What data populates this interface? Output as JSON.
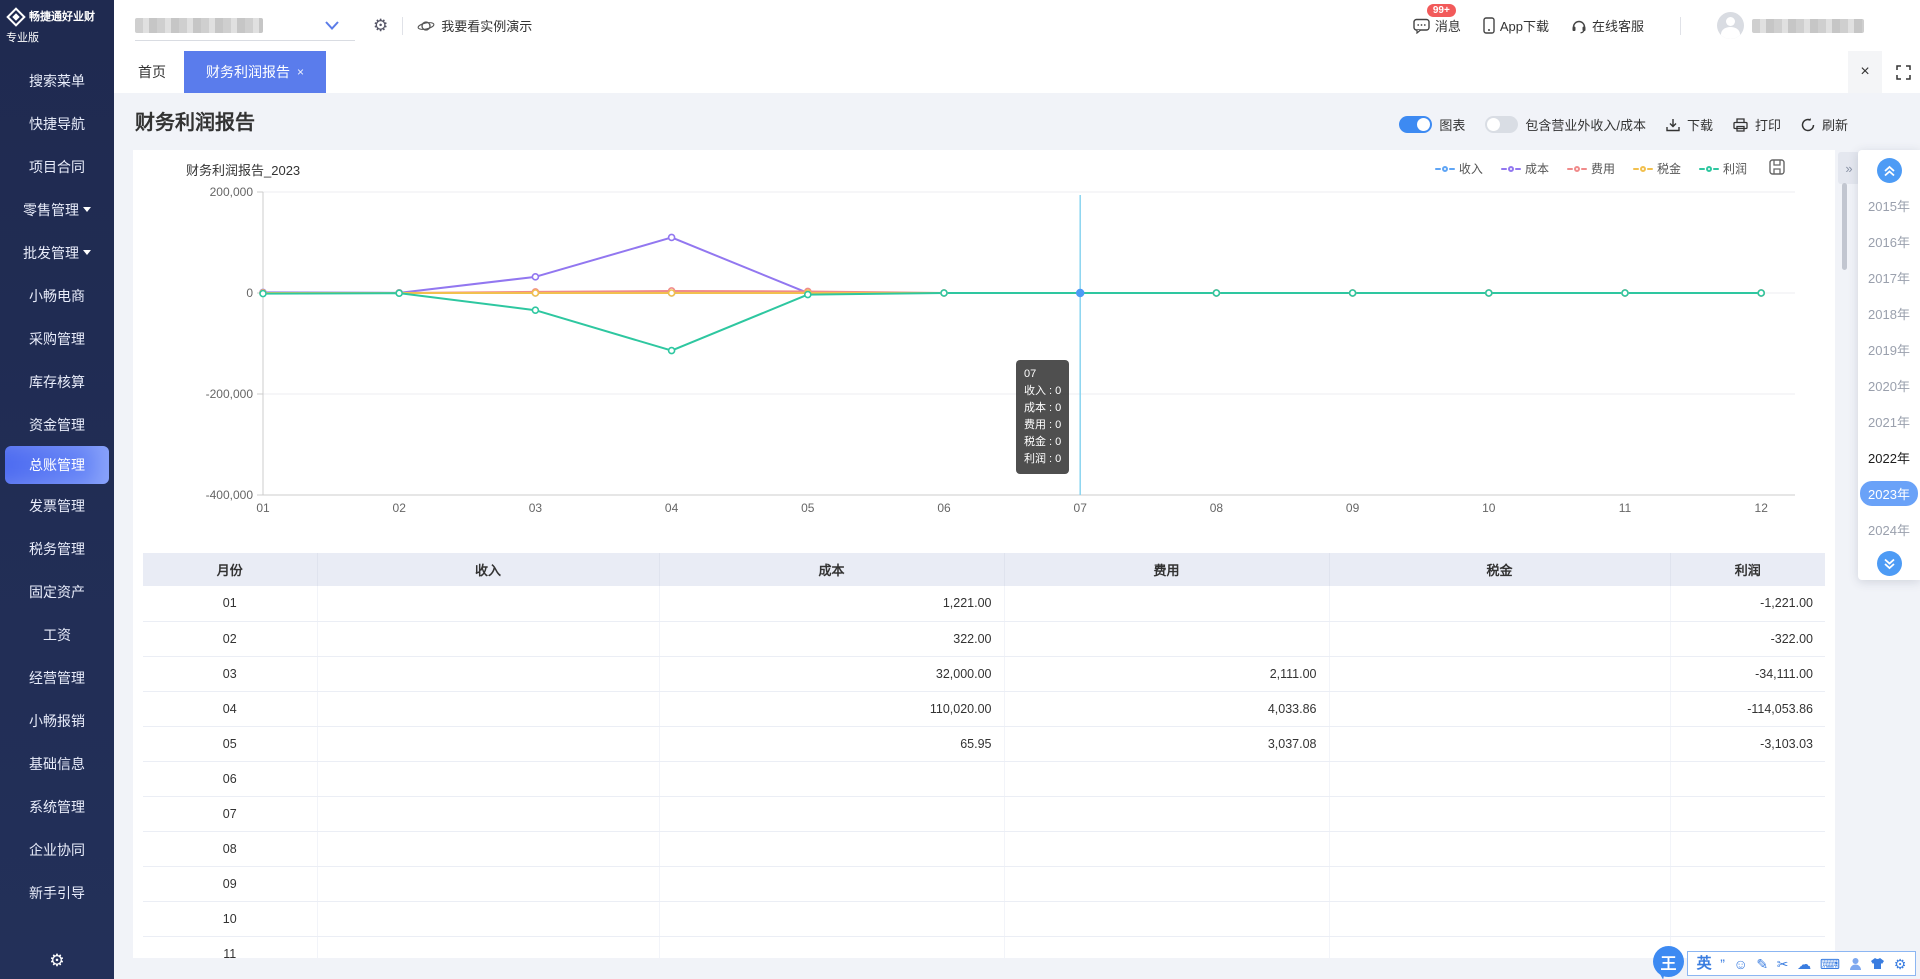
{
  "brand": {
    "title": "畅捷通好业财",
    "subtitle": "专业版"
  },
  "topbar": {
    "demo_label": "我要看实例演示",
    "messages_label": "消息",
    "messages_badge": "99+",
    "app_label": "App下载",
    "service_label": "在线客服"
  },
  "tabs": {
    "home": "首页",
    "active": "财务利润报告",
    "close_glyph": "×"
  },
  "sidebar": {
    "items": [
      {
        "label": "搜索菜单"
      },
      {
        "label": "快捷导航"
      },
      {
        "label": "项目合同"
      },
      {
        "label": "零售管理",
        "arrow": true
      },
      {
        "label": "批发管理",
        "arrow": true
      },
      {
        "label": "小畅电商"
      },
      {
        "label": "采购管理"
      },
      {
        "label": "库存核算"
      },
      {
        "label": "资金管理"
      },
      {
        "label": "总账管理",
        "active": true
      },
      {
        "label": "发票管理"
      },
      {
        "label": "税务管理"
      },
      {
        "label": "固定资产"
      },
      {
        "label": "工资"
      },
      {
        "label": "经营管理"
      },
      {
        "label": "小畅报销"
      },
      {
        "label": "基础信息"
      },
      {
        "label": "系统管理"
      },
      {
        "label": "企业协同"
      },
      {
        "label": "新手引导"
      }
    ]
  },
  "page": {
    "title": "财务利润报告",
    "toggle_chart_label": "图表",
    "toggle_chart_on": true,
    "toggle_nonop_label": "包含营业外收入/成本",
    "toggle_nonop_on": false,
    "download_label": "下载",
    "print_label": "打印",
    "refresh_label": "刷新"
  },
  "chart_data": {
    "type": "line",
    "title": "财务利润报告_2023",
    "categories": [
      "01",
      "02",
      "03",
      "04",
      "05",
      "06",
      "07",
      "08",
      "09",
      "10",
      "11",
      "12"
    ],
    "series": [
      {
        "name": "收入",
        "color": "#5FA5F5",
        "values": [
          0,
          0,
          0,
          0,
          0,
          0,
          0,
          0,
          0,
          0,
          0,
          0
        ]
      },
      {
        "name": "成本",
        "color": "#9277F0",
        "values": [
          1221,
          322,
          32000,
          110020,
          65.95,
          0,
          0,
          0,
          0,
          0,
          0,
          0
        ]
      },
      {
        "name": "费用",
        "color": "#F08B8B",
        "values": [
          0,
          0,
          2111,
          4033.86,
          3037.08,
          0,
          0,
          0,
          0,
          0,
          0,
          0
        ]
      },
      {
        "name": "税金",
        "color": "#F2C04E",
        "values": [
          0,
          0,
          0,
          0,
          0,
          0,
          0,
          0,
          0,
          0,
          0,
          0
        ]
      },
      {
        "name": "利润",
        "color": "#2EC7A0",
        "values": [
          -1221,
          -322,
          -34111,
          -114053.86,
          -3103.03,
          0,
          0,
          0,
          0,
          0,
          0,
          0
        ]
      }
    ],
    "ylim": [
      -400000,
      200000
    ],
    "yticks": [
      {
        "label": "200,000",
        "value": 200000
      },
      {
        "label": "0",
        "value": 0
      },
      {
        "label": "-200,000",
        "value": -200000
      },
      {
        "label": "-400,000",
        "value": -400000
      }
    ],
    "grid": true,
    "legend_position": "top-right",
    "crosshair": {
      "category": "07",
      "index": 6,
      "color": "#8AD4F0"
    },
    "tooltip": {
      "title": "07",
      "lines": [
        "收入 : 0",
        "成本 : 0",
        "费用 : 0",
        "税金 : 0",
        "利润 : 0"
      ]
    }
  },
  "years": {
    "items": [
      "2015年",
      "2016年",
      "2017年",
      "2018年",
      "2019年",
      "2020年",
      "2021年",
      "2022年",
      "2023年",
      "2024年"
    ],
    "selected": "2023年",
    "emphasized": "2022年",
    "collapse_glyph": "»"
  },
  "table": {
    "headers": [
      "月份",
      "收入",
      "成本",
      "费用",
      "税金",
      "利润"
    ],
    "rows": [
      [
        "01",
        "",
        "1,221.00",
        "",
        "",
        "-1,221.00"
      ],
      [
        "02",
        "",
        "322.00",
        "",
        "",
        "-322.00"
      ],
      [
        "03",
        "",
        "32,000.00",
        "2,111.00",
        "",
        "-34,111.00"
      ],
      [
        "04",
        "",
        "110,020.00",
        "4,033.86",
        "",
        "-114,053.86"
      ],
      [
        "05",
        "",
        "65.95",
        "3,037.08",
        "",
        "-3,103.03"
      ],
      [
        "06",
        "",
        "",
        "",
        "",
        ""
      ],
      [
        "07",
        "",
        "",
        "",
        "",
        ""
      ],
      [
        "08",
        "",
        "",
        "",
        "",
        ""
      ],
      [
        "09",
        "",
        "",
        "",
        "",
        ""
      ],
      [
        "10",
        "",
        "",
        "",
        "",
        ""
      ],
      [
        "11",
        "",
        "",
        "",
        "",
        ""
      ]
    ]
  },
  "ime": {
    "logo_char": "王",
    "lang_label": "英",
    "icons": [
      "quote-icon",
      "emoji-icon",
      "pencil-icon",
      "scissors-icon",
      "cloud-icon",
      "keyboard-icon",
      "person-icon",
      "skin-icon",
      "settings-icon"
    ],
    "glyphs": {
      "quote-icon": "”",
      "emoji-icon": "☺",
      "pencil-icon": "✎",
      "scissors-icon": "✂",
      "cloud-icon": "☁",
      "keyboard-icon": "⌨",
      "settings-icon": "⚙"
    }
  }
}
